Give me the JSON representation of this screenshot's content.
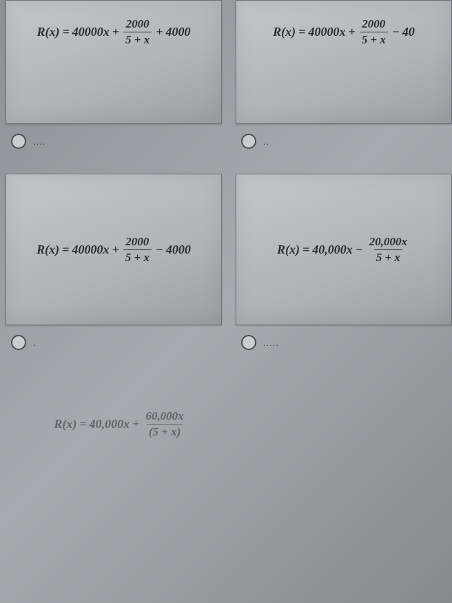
{
  "options": [
    {
      "rx": "R(x)",
      "eq": "=",
      "coef": "40000x",
      "op1": "+",
      "frac_num": "2000",
      "frac_den": "5 + x",
      "op2": "+",
      "tail": "4000",
      "radio_label": "...."
    },
    {
      "rx": "R(x)",
      "eq": "=",
      "coef": "40000x",
      "op1": "+",
      "frac_num": "2000",
      "frac_den": "5 + x",
      "op2": "−",
      "tail": "40",
      "radio_label": ".."
    },
    {
      "rx": "R(x)",
      "eq": "=",
      "coef": "40000x",
      "op1": "+",
      "frac_num": "2000",
      "frac_den": "5 + x",
      "op2": "−",
      "tail": "4000",
      "radio_label": "."
    },
    {
      "rx": "R(x)",
      "eq": "=",
      "coef": "40,000x",
      "op1": "−",
      "frac_num": "20,000x",
      "frac_den": "5 + x",
      "op2": "",
      "tail": "",
      "radio_label": "....."
    },
    {
      "rx": "R(x)",
      "eq": "=",
      "coef": "40,000x",
      "op1": "+",
      "frac_num": "60,000x",
      "frac_den": "(5 + x)",
      "op2": "",
      "tail": "",
      "radio_label": ""
    }
  ],
  "style": {
    "text_color": "#2a2d30",
    "card_bg": "#b5bbc0",
    "page_bg": "#8f959a",
    "border_color": "#6c7277",
    "radio_border": "#4a4f53",
    "font_family": "Times New Roman",
    "formula_fontsize": 18
  }
}
